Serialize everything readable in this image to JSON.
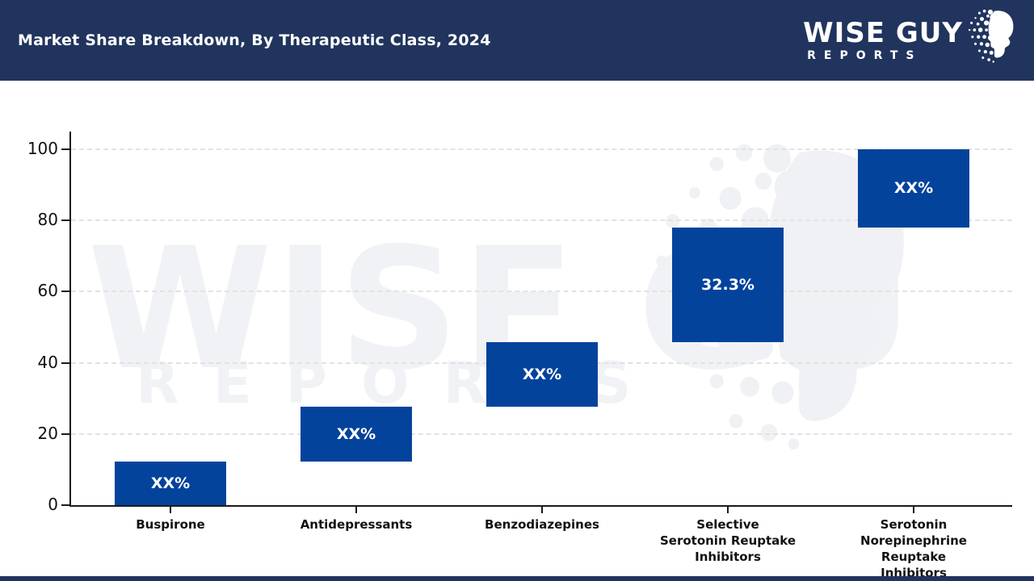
{
  "header": {
    "title": "Market Share Breakdown, By Therapeutic Class, 2024",
    "logo": {
      "line1": "WISE GUY",
      "line2": "REPORTS"
    }
  },
  "watermark": {
    "line1": "WISE GU",
    "line2": "REPORTS"
  },
  "colors": {
    "header_bg": "#21345d",
    "bar_blue": "#04439c",
    "grid_gray": "#e2e2e2",
    "axis_black": "#1a1a1a",
    "watermark_gray": "#f0f1f4",
    "value_label_white": "#ffffff"
  },
  "chart_data": {
    "type": "bar",
    "subtype": "floating-waterfall",
    "title": "Market Share Breakdown, By Therapeutic Class, 2024",
    "xlabel": "",
    "ylabel": "",
    "ylim": [
      0,
      105
    ],
    "yticks": [
      0,
      20,
      40,
      60,
      80,
      100
    ],
    "grid": "horizontal-dashed",
    "legend": "none",
    "bar_color": "#04439c",
    "value_label_color": "#ffffff",
    "categories": [
      "Buspirone",
      "Antidepressants",
      "Benzodiazepines",
      "Selective Serotonin Reuptake Inhibitors",
      "Serotonin Norepinephrine Reuptake Inhibitors"
    ],
    "category_label_lines": [
      [
        "Buspirone"
      ],
      [
        "Antidepressants"
      ],
      [
        "Benzodiazepines"
      ],
      [
        "Selective",
        "Serotonin Reuptake",
        "Inhibitors"
      ],
      [
        "Serotonin",
        "Norepinephrine",
        "Reuptake",
        "Inhibitors"
      ]
    ],
    "bars": [
      {
        "category": "Buspirone",
        "start": 0,
        "end": 12.3,
        "label": "XX%"
      },
      {
        "category": "Antidepressants",
        "start": 12.3,
        "end": 27.7,
        "label": "XX%"
      },
      {
        "category": "Benzodiazepines",
        "start": 27.7,
        "end": 45.8,
        "label": "XX%"
      },
      {
        "category": "Selective Serotonin Reuptake Inhibitors",
        "start": 45.8,
        "end": 78.1,
        "label": "32.3%"
      },
      {
        "category": "Serotonin Norepinephrine Reuptake Inhibitors",
        "start": 78.1,
        "end": 100,
        "label": "XX%"
      }
    ]
  }
}
